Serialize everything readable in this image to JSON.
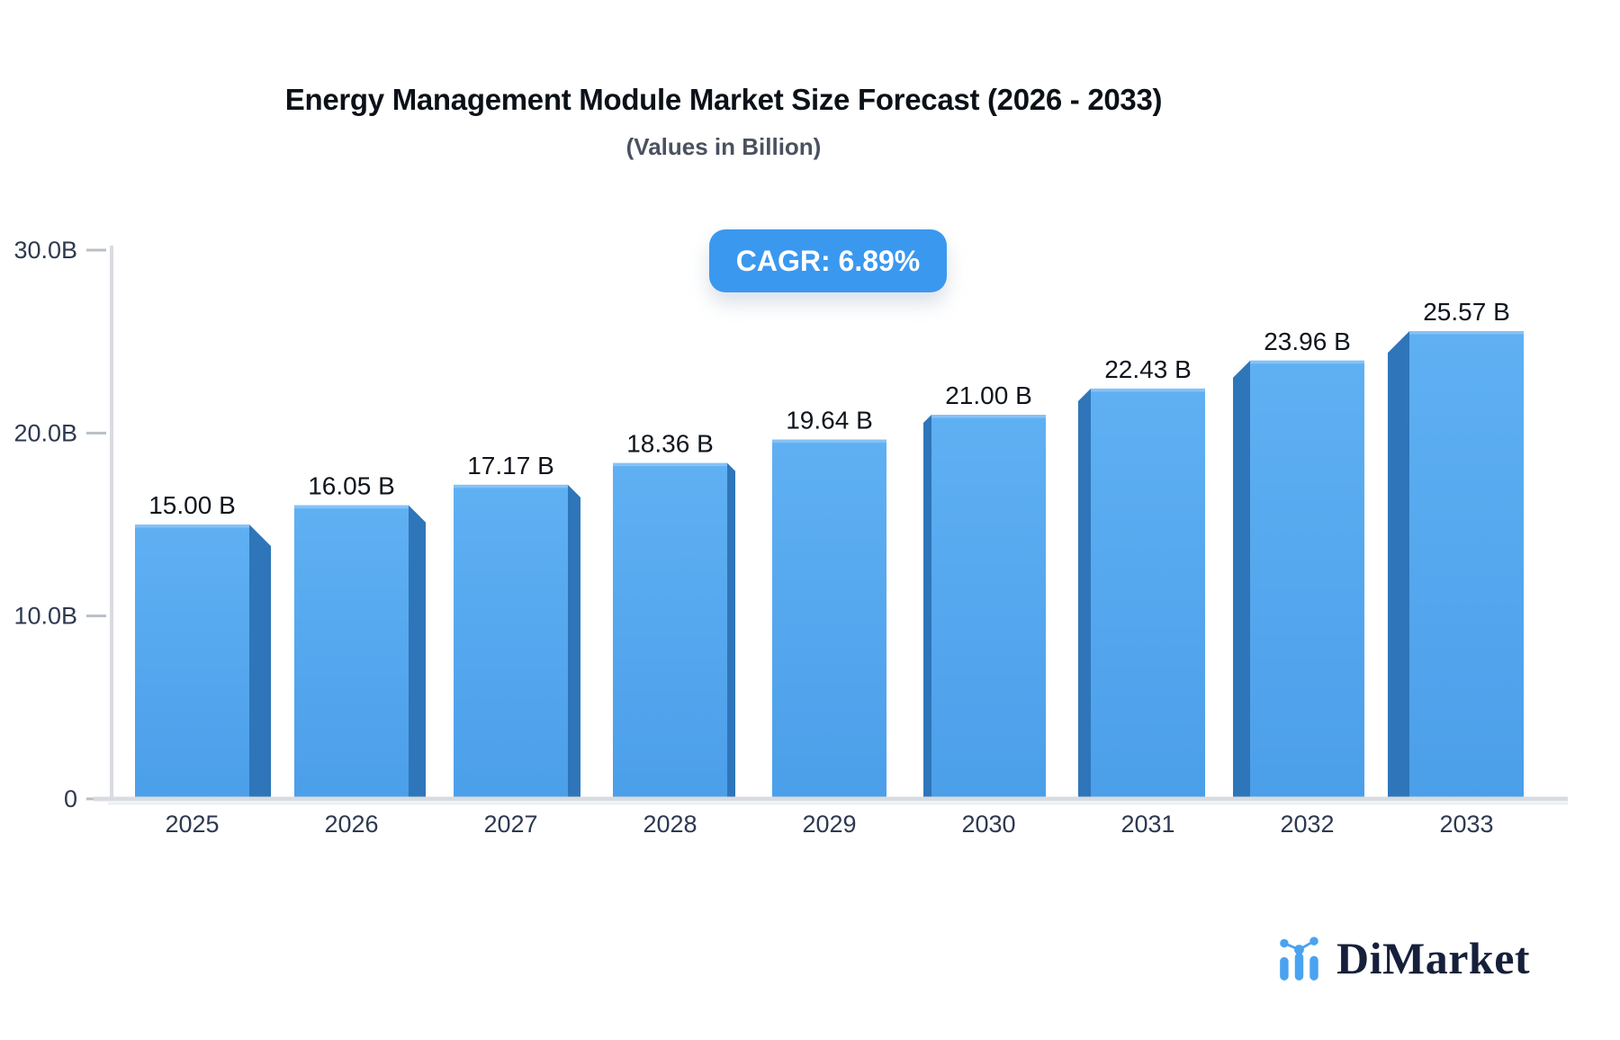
{
  "chart_data": {
    "type": "bar",
    "title": "Energy Management Module Market Size Forecast (2026 - 2033)",
    "subtitle": "(Values in Billion)",
    "cagr": "CAGR: 6.89%",
    "categories": [
      "2025",
      "2026",
      "2027",
      "2028",
      "2029",
      "2030",
      "2031",
      "2032",
      "2033"
    ],
    "values": [
      15.0,
      16.05,
      17.17,
      18.36,
      19.64,
      21.0,
      22.43,
      23.96,
      25.57
    ],
    "bar_labels": [
      "15.00 B",
      "16.05 B",
      "17.17 B",
      "18.36 B",
      "19.64 B",
      "21.00 B",
      "22.43 B",
      "23.96 B",
      "25.57 B"
    ],
    "unit": "Billion",
    "ylim": [
      0,
      30
    ],
    "y_ticks": [
      {
        "value": 30,
        "label": "30.0B"
      },
      {
        "value": 20,
        "label": "20.0B"
      },
      {
        "value": 10,
        "label": "10.0B"
      },
      {
        "value": 0,
        "label": "0"
      }
    ],
    "grid": "off",
    "legend": "none",
    "style": "3d-extruded-bars-center-perspective",
    "colors": {
      "bar_face_top": "#5fb0f3",
      "bar_face_bottom": "#4b9fe9",
      "bar_face_highlight": "#8ac4f6",
      "bar_side": "#2e76b9",
      "badge_bg": "#3b98ef",
      "badge_text": "#ffffff",
      "axis_line": "#d8dce1",
      "tick_dash": "#b9bfc6",
      "axis_text": "#2e3950",
      "value_text": "#10151d",
      "title_text": "#0c1118",
      "subtitle_text": "#4a515f"
    }
  },
  "branding": {
    "logo_text": "DiMarket",
    "logo_icon": "bar-line-chart-icon",
    "logo_color": "#4aa3f0"
  }
}
